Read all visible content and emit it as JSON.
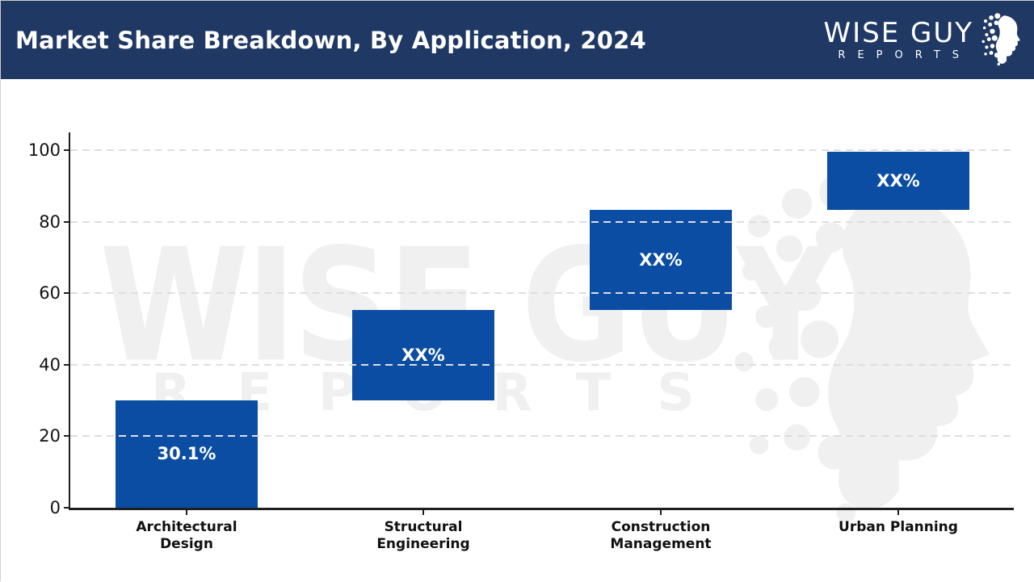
{
  "header": {
    "title": "Market Share Breakdown, By Application, 2024",
    "logo": {
      "line1": "WISE GUY",
      "line2": "REPORTS"
    }
  },
  "watermark": {
    "line1": "WISE GUY",
    "line2": "REPORTS"
  },
  "colors": {
    "header_bg": "#1f3864",
    "bar": "#0b4da2",
    "grid": "#dedede",
    "axis": "#1f1f1f",
    "bar_label": "#ffffff",
    "watermark": "#f0f0f0"
  },
  "chart_data": {
    "type": "bar",
    "subtype": "waterfall",
    "title": "Market Share Breakdown, By Application, 2024",
    "categories": [
      "Architectural Design",
      "Structural Engineering",
      "Construction Management",
      "Urban Planning"
    ],
    "category_label_lines": [
      [
        "Architectural",
        "Design"
      ],
      [
        "Structural",
        "Engineering"
      ],
      [
        "Construction",
        "Management"
      ],
      [
        "Urban Planning"
      ]
    ],
    "segments": [
      {
        "category": "Architectural Design",
        "start": 0,
        "end": 30.1,
        "value": 30.1,
        "label": "30.1%"
      },
      {
        "category": "Structural Engineering",
        "start": 30.1,
        "end": 55.2,
        "value": 25.1,
        "label": "XX%"
      },
      {
        "category": "Construction Management",
        "start": 55.2,
        "end": 83.2,
        "value": 28.0,
        "label": "XX%"
      },
      {
        "category": "Urban Planning",
        "start": 83.2,
        "end": 99.6,
        "value": 16.4,
        "label": "XX%"
      }
    ],
    "xlabel": "",
    "ylabel": "",
    "ylim": [
      0,
      100
    ],
    "yticks": [
      0,
      20,
      40,
      60,
      80,
      100
    ],
    "grid": "horizontal dashed, drawn over bars",
    "legend": "none"
  }
}
